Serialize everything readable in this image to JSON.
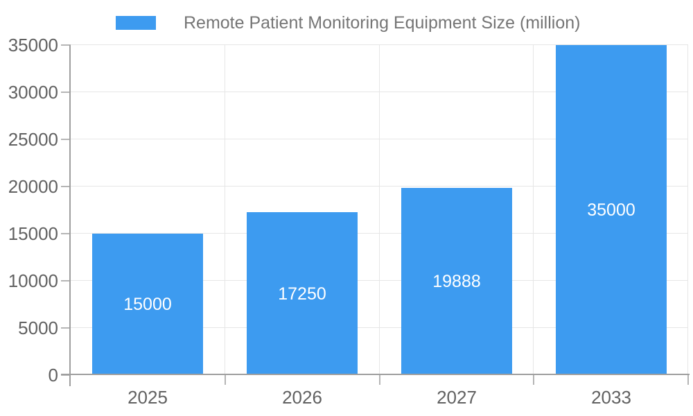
{
  "chart_data": {
    "type": "bar",
    "title": "Remote Patient Monitoring Equipment Size (million)",
    "categories": [
      "2025",
      "2026",
      "2027",
      "2033"
    ],
    "series": [
      {
        "name": "Remote Patient Monitoring Equipment Size (million)",
        "values": [
          15000,
          17250,
          19888,
          35000
        ],
        "color": "#3D9BF0"
      }
    ],
    "legend": {
      "position": "top",
      "entries": [
        "Remote Patient Monitoring Equipment Size (million)"
      ]
    },
    "xlabel": "",
    "ylabel": "",
    "ylim": [
      0,
      35000
    ],
    "ytick_step": 5000,
    "yticks": [
      0,
      5000,
      10000,
      15000,
      20000,
      25000,
      30000,
      35000
    ],
    "grid": true,
    "value_labels": {
      "visible": true,
      "position": "inside-center",
      "color": "#ffffff",
      "values": [
        "15000",
        "17250",
        "19888",
        "35000"
      ]
    },
    "colors": {
      "bar": "#3D9BF0",
      "gridline": "#e6e6e6",
      "axis_line": "#9e9e9e",
      "tick": "#b5b5b5",
      "axis_text": "#616161",
      "legend_text": "#757575",
      "background": "#ffffff"
    }
  }
}
